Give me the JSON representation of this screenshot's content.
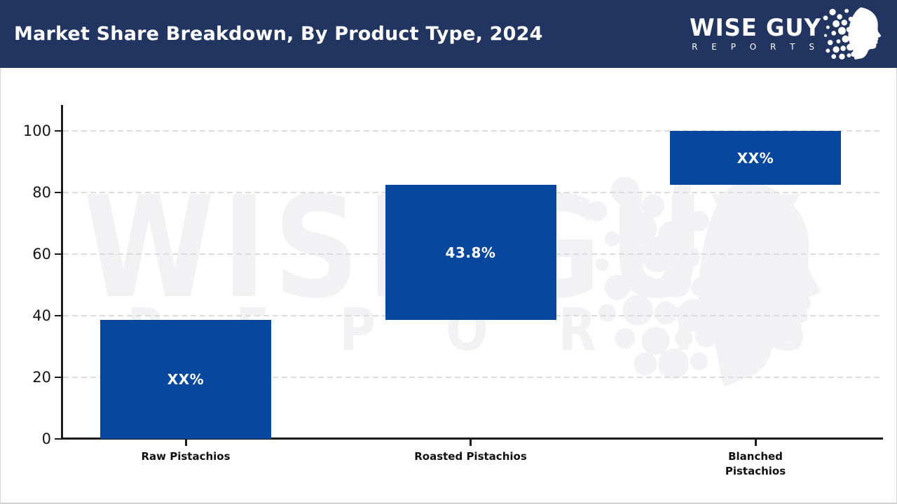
{
  "header": {
    "title": "Market Share Breakdown, By Product Type, 2024",
    "logo": {
      "line1": "WISE GUY",
      "line2": "R E P O R T S"
    }
  },
  "watermark": {
    "line1": "WISE GUY",
    "line2": "R E P O R T S"
  },
  "chart_data": {
    "type": "bar",
    "subtype": "waterfall",
    "title": "Market Share Breakdown, By Product Type, 2024",
    "categories": [
      "Raw Pistachios",
      "Roasted Pistachios",
      "Blanched Pistachios"
    ],
    "category_lines": [
      [
        "Raw Pistachios"
      ],
      [
        "Roasted Pistachios"
      ],
      [
        "Blanched",
        "Pistachios"
      ]
    ],
    "bars": [
      {
        "category": "Raw Pistachios",
        "start": 0,
        "end": 38.6,
        "label": "XX%"
      },
      {
        "category": "Roasted Pistachios",
        "start": 38.6,
        "end": 82.4,
        "label": "43.8%"
      },
      {
        "category": "Blanched Pistachios",
        "start": 82.4,
        "end": 100,
        "label": "XX%"
      }
    ],
    "heights": [
      38.6,
      43.8,
      17.6
    ],
    "yticks": [
      0,
      20,
      40,
      60,
      80,
      100
    ],
    "ylim": [
      0,
      108
    ],
    "grid": "dashed-horizontal",
    "legend": "none",
    "xlabel": "",
    "ylabel": ""
  },
  "colors": {
    "header_bg": "#223560",
    "bar": "#07479e",
    "grid": "#dcdcdc",
    "axis": "#1a1a1a",
    "watermark": "#f2f2f4",
    "title_text": "#ffffff"
  }
}
